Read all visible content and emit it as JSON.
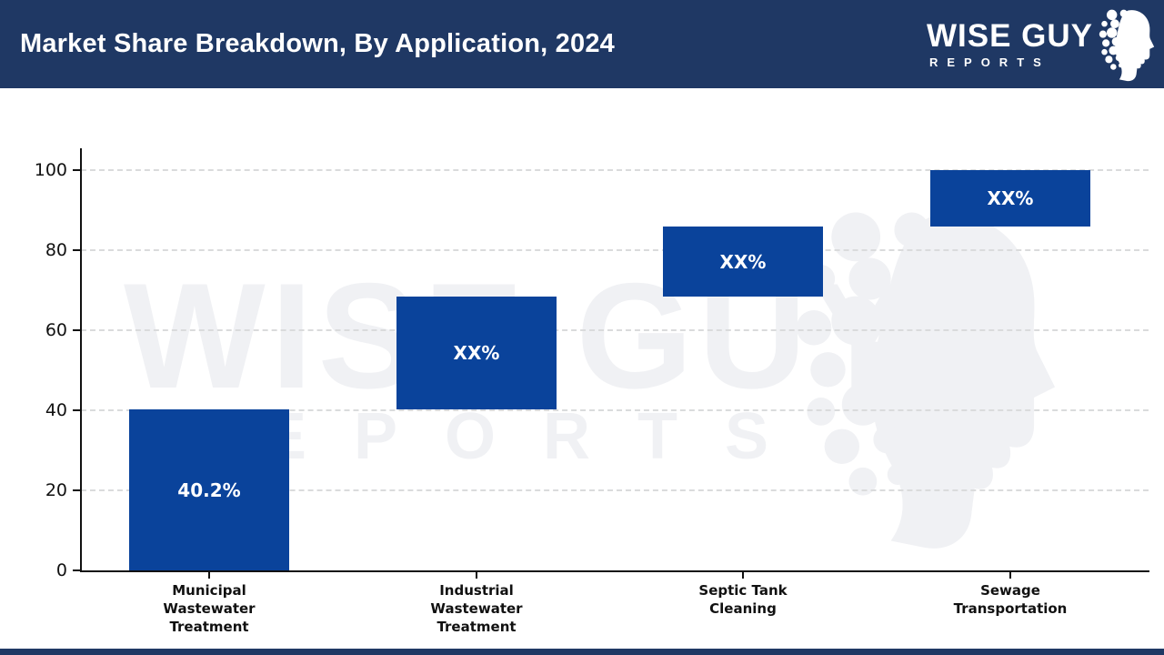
{
  "header": {
    "title": "Market Share Breakdown, By Application, 2024",
    "logo": {
      "line1": "WISE GUY",
      "line2": "REPORTS"
    }
  },
  "watermark": {
    "line1": "WISE GUY",
    "line2": "REPORTS"
  },
  "colors": {
    "header_bg": "#1f3864",
    "footer_bg": "#1f3864",
    "bar": "#0a439b",
    "bar_label": "#ffffff",
    "grid": "#dadbdc",
    "axis": "#111111",
    "watermark": "#f0f1f4",
    "title_text": "#ffffff"
  },
  "chart_data": {
    "type": "bar",
    "subtype": "waterfall",
    "title": "Market Share Breakdown, By Application, 2024",
    "xlabel": "",
    "ylabel": "",
    "ylim": [
      0,
      100
    ],
    "yticks": [
      0,
      20,
      40,
      60,
      80,
      100
    ],
    "grid": "horizontal-dashed",
    "legend": "none",
    "categories": [
      [
        "Municipal",
        "Wastewater",
        "Treatment"
      ],
      [
        "Industrial",
        "Wastewater",
        "Treatment"
      ],
      [
        "Septic Tank",
        "Cleaning"
      ],
      [
        "Sewage",
        "Transportation"
      ]
    ],
    "series": [
      {
        "name": "Market Share",
        "segments": [
          {
            "start": 0,
            "end": 40.2,
            "label": "40.2%",
            "estimated_size": 40.2
          },
          {
            "start": 40.2,
            "end": 68.4,
            "label": "XX%",
            "estimated_size": 28.2
          },
          {
            "start": 68.4,
            "end": 85.9,
            "label": "XX%",
            "estimated_size": 17.5
          },
          {
            "start": 85.9,
            "end": 100.0,
            "label": "XX%",
            "estimated_size": 14.1
          }
        ]
      }
    ]
  }
}
